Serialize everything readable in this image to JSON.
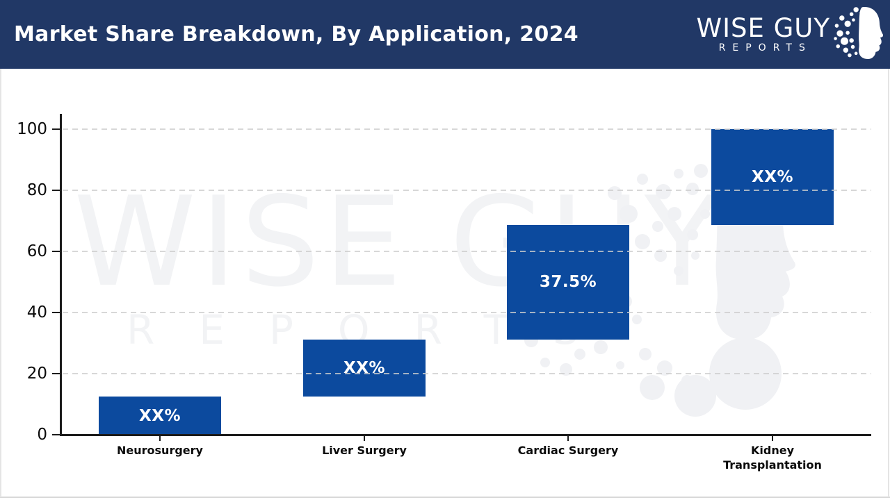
{
  "header": {
    "title": "Market Share Breakdown, By Application, 2024",
    "logo": {
      "line1": "WISE GUY",
      "line2": "REPORTS"
    }
  },
  "watermark": {
    "line1": "WISE GUY",
    "line2": "REPORTS"
  },
  "colors": {
    "header_bg": "#213866",
    "bar": "#0c4a9e",
    "grid": "#cdcdcd",
    "axis": "#1c1c1c",
    "bar_label": "#ffffff",
    "watermark": "#f2f3f5"
  },
  "chart_data": {
    "type": "waterfall",
    "title": "Market Share Breakdown, By Application, 2024",
    "xlabel": "",
    "ylabel": "",
    "categories": [
      "Neurosurgery",
      "Liver Surgery",
      "Cardiac Surgery",
      "Kidney Transplantation"
    ],
    "segments": [
      {
        "category": "Neurosurgery",
        "start": 0,
        "end": 12.5,
        "label": "XX%"
      },
      {
        "category": "Liver Surgery",
        "start": 12.5,
        "end": 31.25,
        "label": "XX%"
      },
      {
        "category": "Cardiac Surgery",
        "start": 31.25,
        "end": 68.75,
        "label": "37.5%"
      },
      {
        "category": "Kidney Transplantation",
        "start": 68.75,
        "end": 100,
        "label": "XX%"
      }
    ],
    "ylim": [
      0,
      100
    ],
    "yticks": [
      0,
      20,
      40,
      60,
      80,
      100
    ],
    "grid": "horizontal-dashed",
    "legend": "none",
    "bar_color": "#0c4a9e"
  }
}
